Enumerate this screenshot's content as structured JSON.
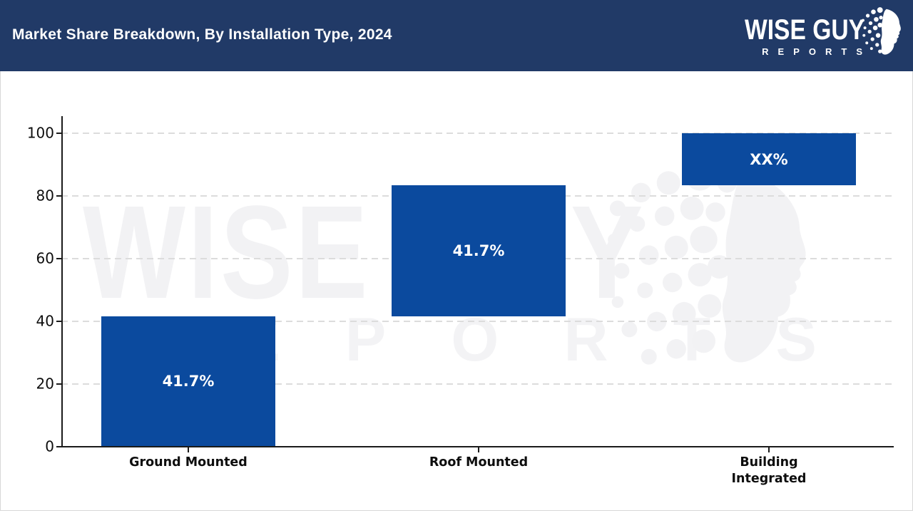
{
  "header": {
    "title": "Market Share Breakdown, By Installation Type, 2024",
    "bg_color": "#213a67",
    "logo": {
      "wordmark": "WISE GUY",
      "subtext": "REPORTS",
      "face_icon": "head-profile-dots-icon"
    }
  },
  "watermark": {
    "wordmark": "WISE GUY",
    "subtext": "REPORTS",
    "color": "#f2f2f4"
  },
  "chart_data": {
    "type": "bar",
    "variant": "stacked-waterfall",
    "title": "Market Share Breakdown, By Installation Type, 2024",
    "categories": [
      "Ground Mounted",
      "Roof Mounted",
      "Building Integrated"
    ],
    "tick_labels": [
      "Ground Mounted",
      "Roof Mounted",
      "Building\nIntegrated"
    ],
    "bars": [
      {
        "category": "Ground Mounted",
        "start": 0,
        "end": 41.7,
        "label": "41.7%"
      },
      {
        "category": "Roof Mounted",
        "start": 41.7,
        "end": 83.4,
        "label": "41.7%"
      },
      {
        "category": "Building Integrated",
        "start": 83.4,
        "end": 100,
        "label": "XX%"
      }
    ],
    "xlabel": "",
    "ylabel": "",
    "yticks": [
      0,
      20,
      40,
      60,
      80,
      100
    ],
    "ylim": [
      0,
      105
    ],
    "bar_color": "#0b4a9e",
    "label_color": "#ffffff",
    "grid": {
      "axis": "y",
      "style": "dashed",
      "color": "#dcdcdc"
    },
    "legend": null
  }
}
